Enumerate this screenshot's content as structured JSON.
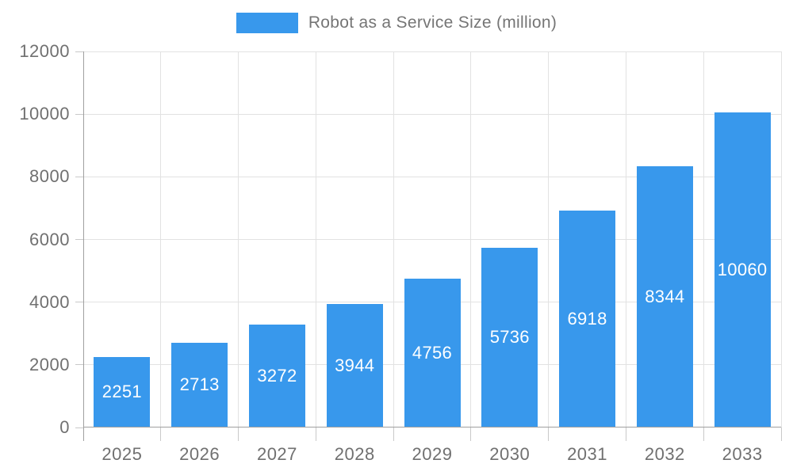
{
  "legend": {
    "label": "Robot as a Service Size (million)"
  },
  "colors": {
    "bar": "#3898EC",
    "bar_label": "#ffffff",
    "axis_line": "#a0a0a0",
    "grid_line": "#e2e2e2",
    "tick": "#c9c9c9",
    "axis_text": "#707070",
    "legend_text": "#757575"
  },
  "chart_data": {
    "type": "bar",
    "title": "Robot as a Service Size (million)",
    "categories": [
      "2025",
      "2026",
      "2027",
      "2028",
      "2029",
      "2030",
      "2031",
      "2032",
      "2033"
    ],
    "values": [
      2251,
      2713,
      3272,
      3944,
      4756,
      5736,
      6918,
      8344,
      10060
    ],
    "xlabel": "",
    "ylabel": "",
    "ylim": [
      0,
      12000
    ],
    "yticks": [
      0,
      2000,
      4000,
      6000,
      8000,
      10000,
      12000
    ],
    "grid": true,
    "legend_position": "top",
    "bar_labels": "inside-center-white"
  }
}
